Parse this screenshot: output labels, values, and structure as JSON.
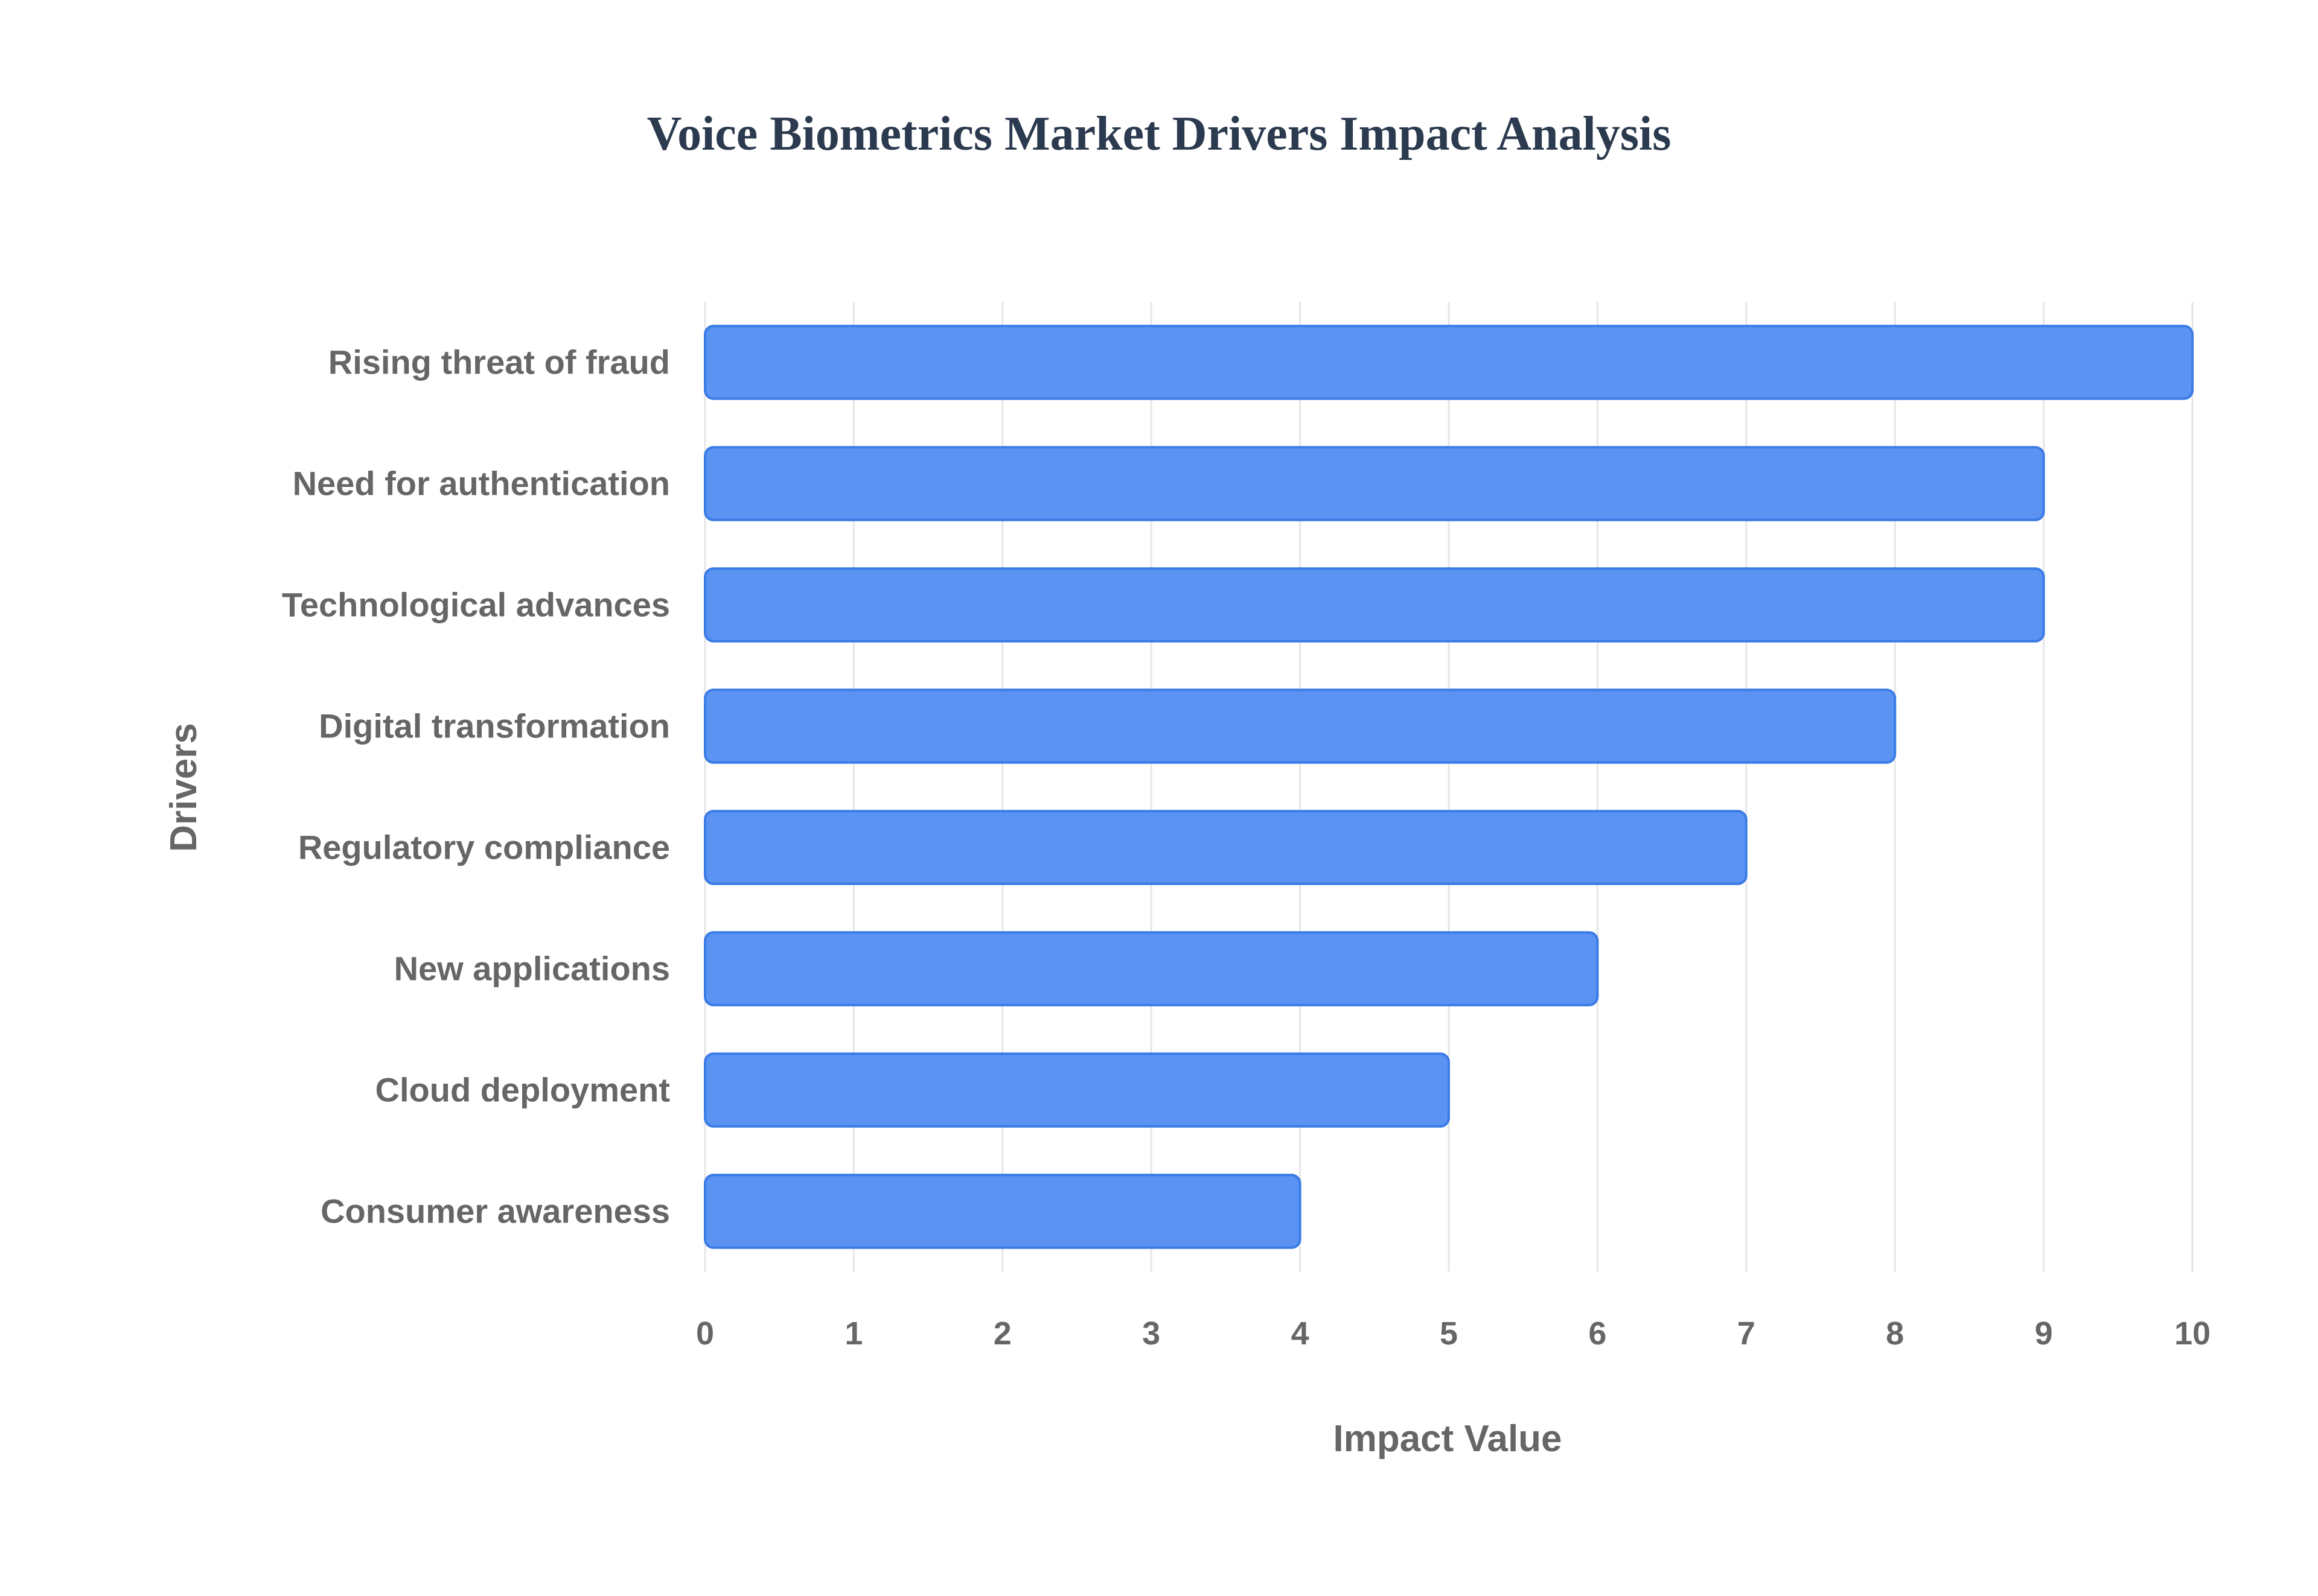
{
  "chart_data": {
    "type": "bar",
    "orientation": "horizontal",
    "title": "Voice Biometrics Market Drivers Impact Analysis",
    "xlabel": "Impact Value",
    "ylabel": "Drivers",
    "categories": [
      "Rising threat of fraud",
      "Need for authentication",
      "Technological advances",
      "Digital transformation",
      "Regulatory compliance",
      "New applications",
      "Cloud deployment",
      "Consumer awareness"
    ],
    "values": [
      10,
      9,
      9,
      8,
      7,
      6,
      5,
      4
    ],
    "xlim": [
      0,
      10
    ],
    "xticks": [
      "0",
      "1",
      "2",
      "3",
      "4",
      "5",
      "6",
      "7",
      "8",
      "9",
      "10"
    ],
    "grid": true,
    "legend": "none",
    "colors": {
      "bar_fill": "#5b93f2",
      "bar_stroke": "#3a7be6",
      "grid": "#e6e6e6",
      "axis_text": "#666666",
      "title_text": "#2b3a4e"
    }
  }
}
